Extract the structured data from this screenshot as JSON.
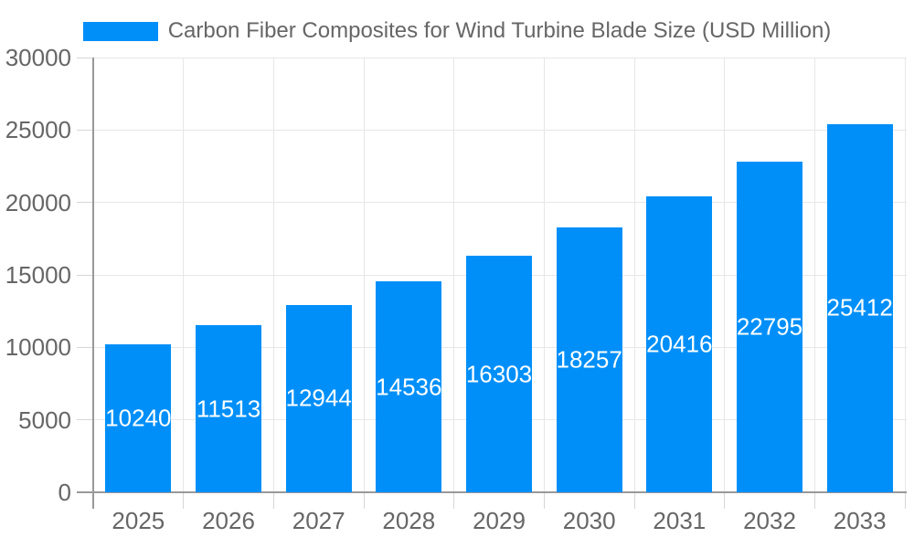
{
  "legend": {
    "label": "Carbon Fiber Composites for Wind Turbine Blade Size (USD Million)",
    "swatch_color": "#008FF8"
  },
  "chart_data": {
    "type": "bar",
    "title": "Carbon Fiber Composites for Wind Turbine Blade Size (USD Million)",
    "categories": [
      "2025",
      "2026",
      "2027",
      "2028",
      "2029",
      "2030",
      "2031",
      "2032",
      "2033"
    ],
    "series": [
      {
        "name": "Carbon Fiber Composites for Wind Turbine Blade Size (USD Million)",
        "values": [
          10240,
          11513,
          12944,
          14536,
          16303,
          18257,
          20416,
          22795,
          25412
        ]
      }
    ],
    "value_labels": [
      10240,
      11513,
      12944,
      14536,
      16303,
      18257,
      20416,
      22795,
      25412
    ],
    "xlabel": "",
    "ylabel": "",
    "ylim": [
      0,
      30000
    ],
    "yticks": [
      0,
      5000,
      10000,
      15000,
      20000,
      25000,
      30000
    ],
    "grid": true,
    "legend_position": "top-center",
    "value_label_position": "inside-center",
    "colors": {
      "bar": "#008FF8",
      "value_label_text": "#FFFFFF",
      "axis_text": "#666666",
      "grid_line": "#E7E7E7",
      "tick_mark": "#D6D6D6",
      "axis_line": "#999999",
      "background": "#FFFFFF"
    }
  }
}
